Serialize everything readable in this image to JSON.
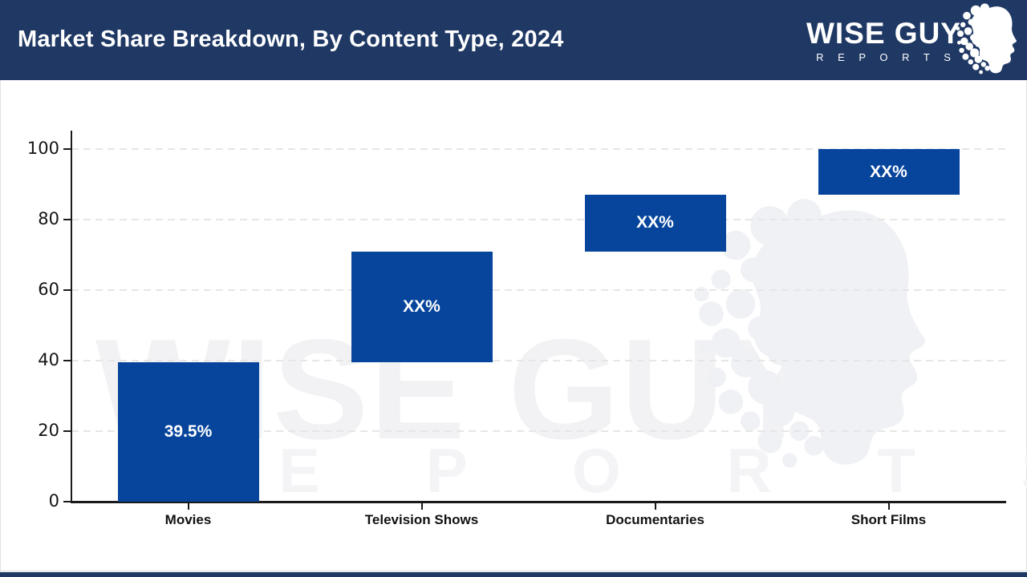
{
  "header": {
    "title": "Market Share Breakdown, By Content Type, 2024",
    "logo": {
      "line1": "WISE GUY",
      "line2": "R E P O R T S"
    }
  },
  "watermark": {
    "line1": "WISE GUY",
    "line2": "R E P O R T S"
  },
  "colors": {
    "brand_navy": "#1f3864",
    "bar_blue": "#07459c"
  },
  "chart_data": {
    "type": "bar",
    "variant": "waterfall",
    "title": "Market Share Breakdown, By Content Type, 2024",
    "categories": [
      "Movies",
      "Television Shows",
      "Documentaries",
      "Short Films"
    ],
    "segments": [
      {
        "category": "Movies",
        "start": 0,
        "end": 39.5,
        "value": 39.5,
        "label": "39.5%"
      },
      {
        "category": "Television Shows",
        "start": 39.5,
        "end": 71,
        "value": 31.5,
        "label": "XX%"
      },
      {
        "category": "Documentaries",
        "start": 71,
        "end": 87,
        "value": 16,
        "label": "XX%"
      },
      {
        "category": "Short Films",
        "start": 87,
        "end": 100,
        "value": 13,
        "label": "XX%"
      }
    ],
    "ylim": [
      0,
      100
    ],
    "yticks": [
      0,
      20,
      40,
      60,
      80,
      100
    ],
    "xlabel": "",
    "ylabel": "",
    "grid": "horizontal-dashed",
    "legend": null,
    "bar_color": "#07459c",
    "bar_label_color": "#ffffff"
  }
}
